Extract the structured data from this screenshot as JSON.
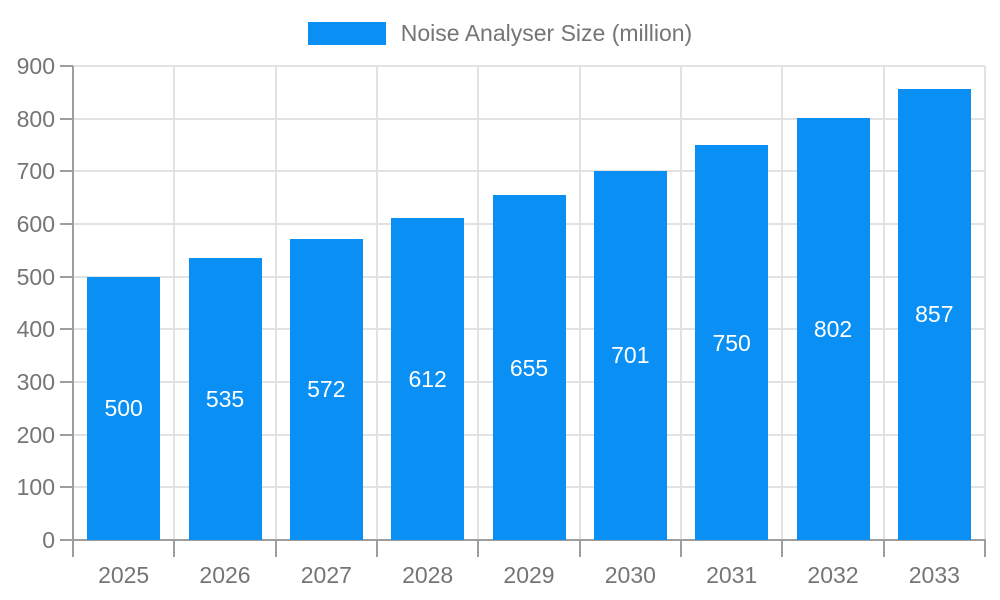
{
  "legend": {
    "label": "Noise Analyser Size (million)"
  },
  "chart_data": {
    "type": "bar",
    "title": "",
    "series_name": "Noise Analyser Size (million)",
    "categories": [
      "2025",
      "2026",
      "2027",
      "2028",
      "2029",
      "2030",
      "2031",
      "2032",
      "2033"
    ],
    "values": [
      500,
      535,
      572,
      612,
      655,
      701,
      750,
      802,
      857
    ],
    "xlabel": "",
    "ylabel": "",
    "ylim": [
      0,
      900
    ],
    "y_tick_step": 100,
    "y_ticks": [
      0,
      100,
      200,
      300,
      400,
      500,
      600,
      700,
      800,
      900
    ],
    "grid": true,
    "bar_value_labels_shown": true,
    "legend_position": "top-center",
    "colors": {
      "bar": "#0a90f4",
      "bar_label": "#ffffff",
      "axis": "#9e9e9e",
      "gridline": "#e2e2e2",
      "text": "#757575",
      "background": "#ffffff"
    }
  }
}
